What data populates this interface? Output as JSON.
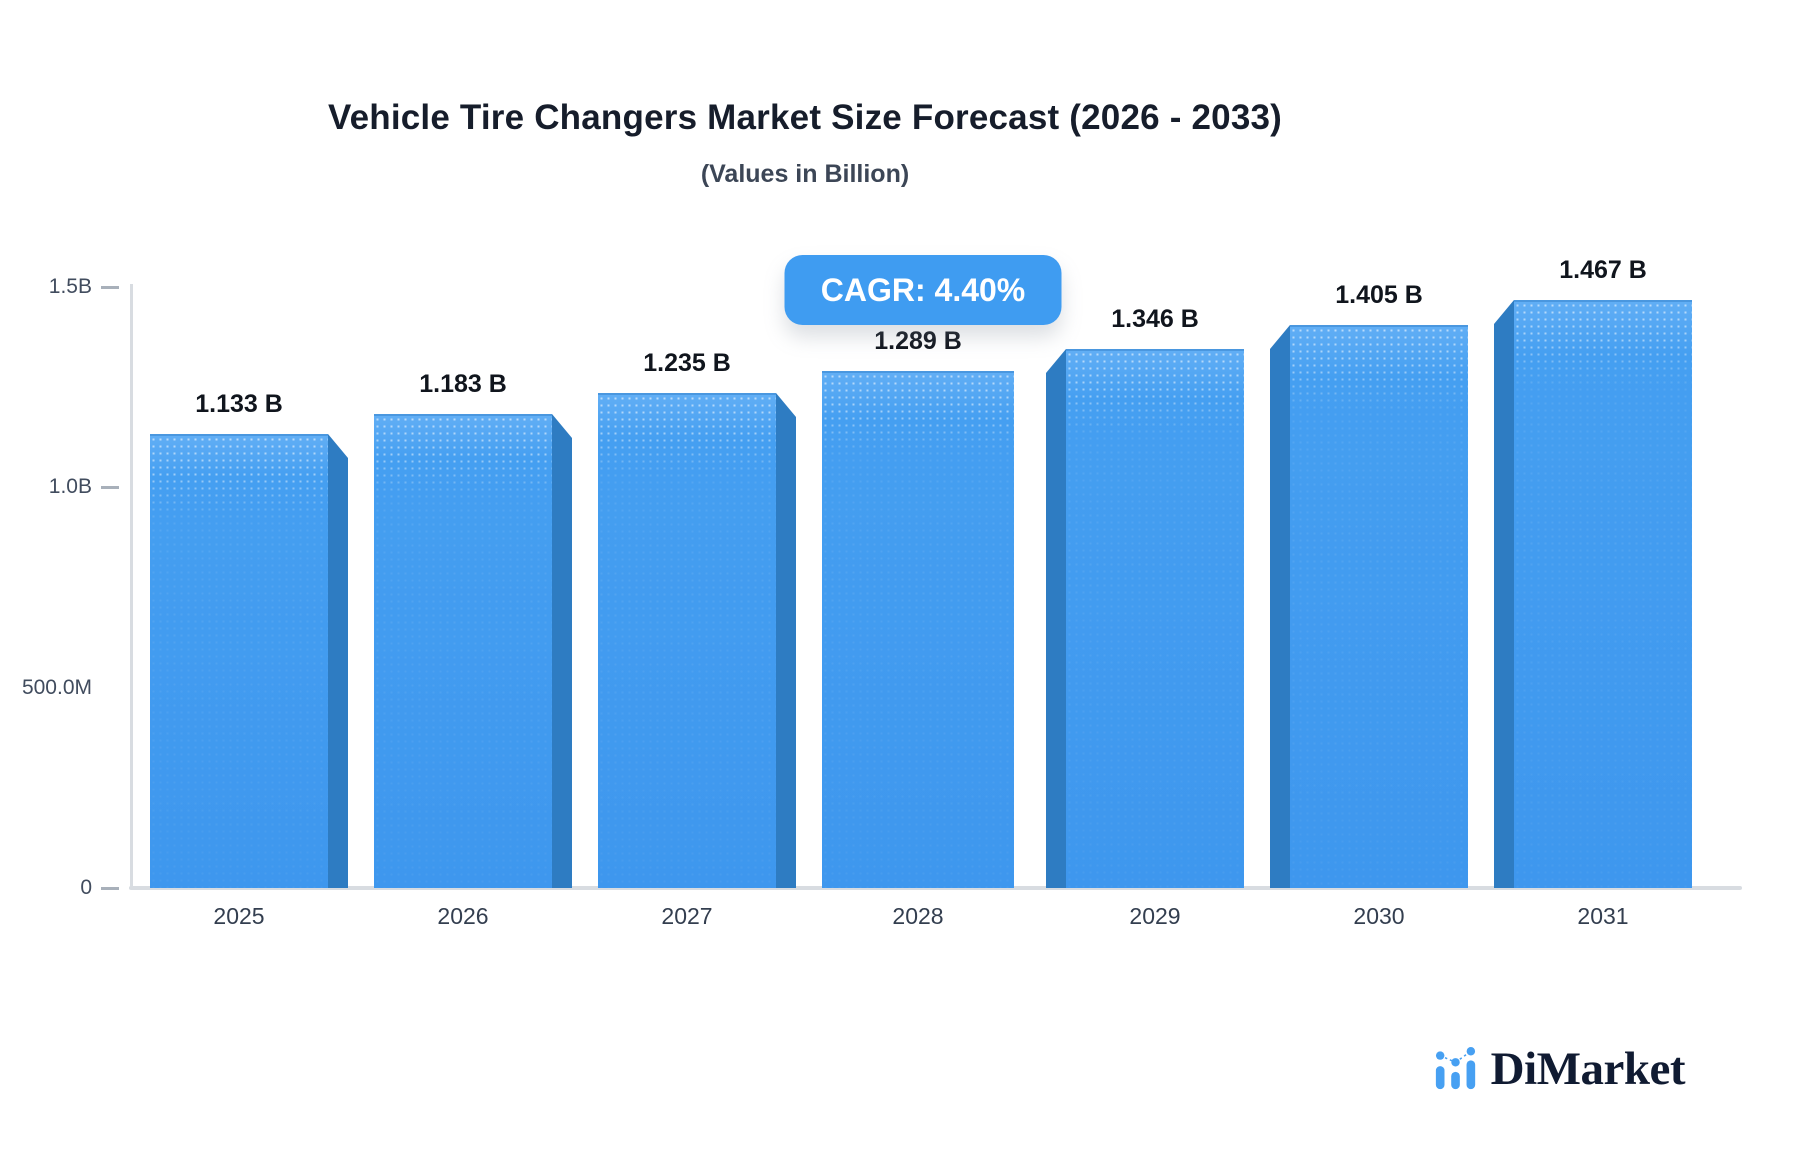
{
  "title": "Vehicle Tire Changers Market Size Forecast (2026 - 2033)",
  "subtitle": "(Values in Billion)",
  "cagr_badge": "CAGR: 4.40%",
  "brand": {
    "name": "DiMarket",
    "icon": "bar-chart-logo-icon"
  },
  "colors": {
    "bar_face": "#3e97ee",
    "bar_face_light": "#61aef5",
    "bar_bevel": "#2e7cc2",
    "badge_bg": "#3f9cf1",
    "axis_gray": "#d8dce1",
    "logo_blue": "#47a0f2"
  },
  "chart_data": {
    "type": "bar",
    "title": "Vehicle Tire Changers Market Size Forecast (2026 - 2033)",
    "subtitle": "(Values in Billion)",
    "cagr": "4.40%",
    "unit": "Billion",
    "categories": [
      "2025",
      "2026",
      "2027",
      "2028",
      "2029",
      "2030",
      "2031"
    ],
    "values": [
      1.133,
      1.183,
      1.235,
      1.289,
      1.346,
      1.405,
      1.467
    ],
    "value_labels": [
      "1.133 B",
      "1.183 B",
      "1.235 B",
      "1.289 B",
      "1.346 B",
      "1.405 B",
      "1.467 B"
    ],
    "xlabel": "",
    "ylabel": "",
    "ylim": [
      0,
      1.5
    ],
    "grid": false,
    "legend": false,
    "yticks": [
      {
        "label": "1.5B",
        "value": 1.5,
        "dash": true
      },
      {
        "label": "1.0B",
        "value": 1.0,
        "dash": true
      },
      {
        "label": "500.0M",
        "value": 0.5,
        "dash": false
      },
      {
        "label": "0",
        "value": 0.0,
        "dash": true
      }
    ]
  }
}
